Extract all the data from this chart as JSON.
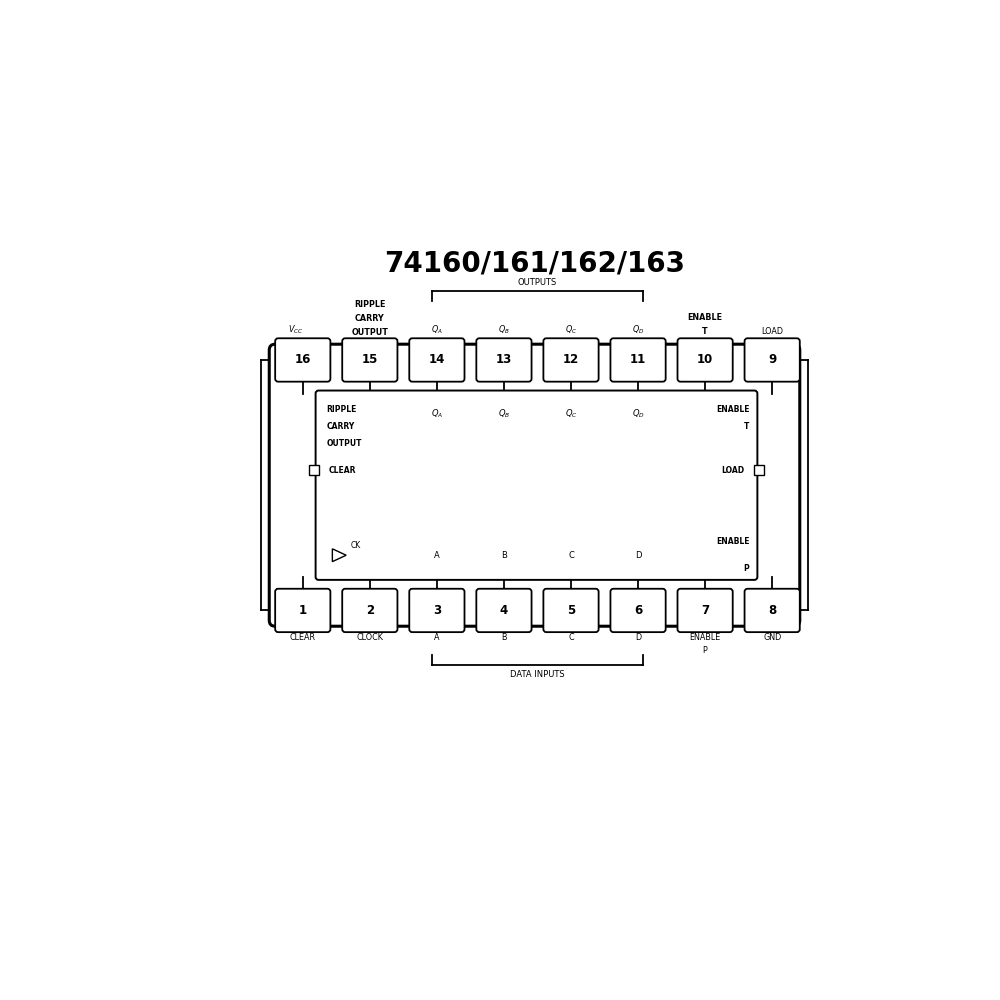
{
  "title": "74160/161/162/163",
  "title_fontsize": 20,
  "bg_color": "#ffffff",
  "line_color": "#000000",
  "top_nums": [
    "16",
    "15",
    "14",
    "13",
    "12",
    "11",
    "10",
    "9"
  ],
  "top_labels_line1": [
    "V",
    "RIPPLE",
    "Q",
    "Q",
    "Q",
    "Q",
    "ENABLE",
    "LOAD"
  ],
  "top_labels_line2": [
    "CC",
    "CARRY",
    "A",
    "B",
    "C",
    "D",
    "T",
    ""
  ],
  "top_labels_line3": [
    "",
    "OUTPUT",
    "",
    "",
    "",
    "",
    "",
    ""
  ],
  "bot_nums": [
    "1",
    "2",
    "3",
    "4",
    "5",
    "6",
    "7",
    "8"
  ],
  "bot_labels_line1": [
    "CLEAR",
    "CLOCK",
    "A",
    "B",
    "C",
    "D",
    "ENABLE",
    "GND"
  ],
  "bot_labels_line2": [
    "",
    "",
    "",
    "",
    "",
    "",
    "P",
    ""
  ],
  "outputs_label": "OUTPUTS",
  "data_inputs_label": "DATA INPUTS",
  "inner_lines": {
    "ripple_carry_output": [
      "RIPPLE",
      "CARRY",
      "OUTPUT"
    ],
    "qa": "Q",
    "qb": "Q",
    "qc": "Q",
    "qd": "Q",
    "enable_t": [
      "ENABLE",
      "T"
    ],
    "clear": "CLEAR",
    "load": "LOAD",
    "enable_p": [
      "ENABLE",
      "P"
    ],
    "ck": "CK",
    "a": "A",
    "b": "B",
    "c": "C",
    "d": "D"
  }
}
